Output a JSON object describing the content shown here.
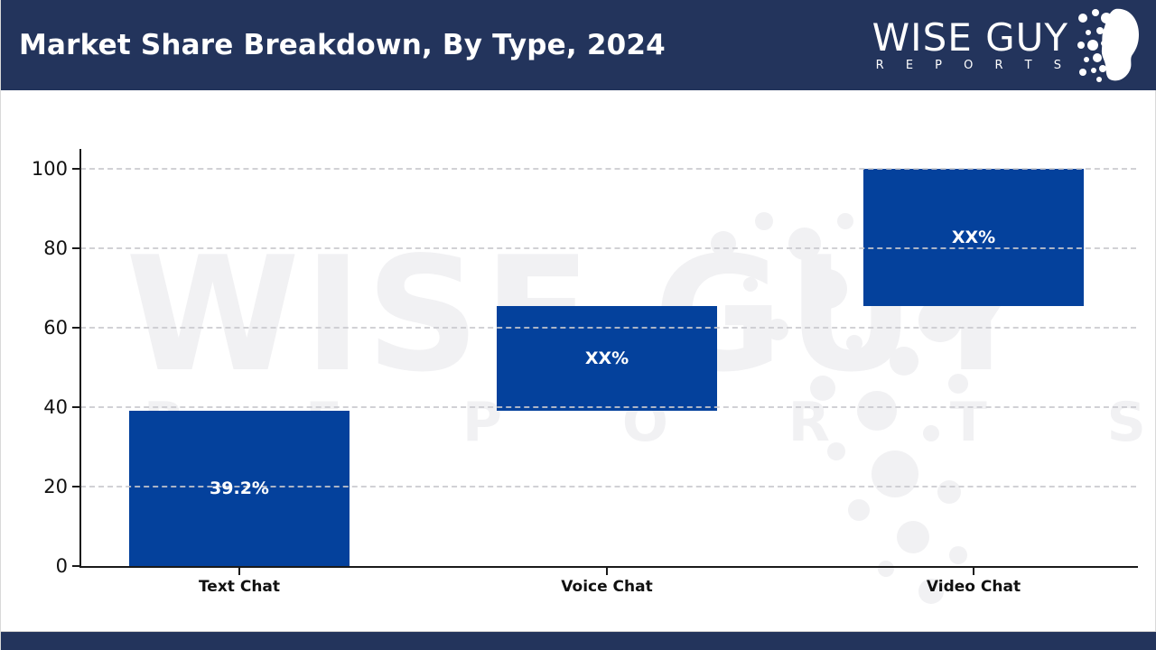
{
  "header": {
    "title": "Market Share Breakdown, By Type, 2024",
    "logo": {
      "line1": "WISE GUY",
      "line2": "R E P O R T S"
    }
  },
  "watermark": {
    "line1": "WISE GUY",
    "line2": "R E P O R T S"
  },
  "colors": {
    "header_bg": "#23345C",
    "footer_bg": "#23345C",
    "bar": "#04419C",
    "bar_label": "#FFFFFF",
    "grid": "#C9C9CE",
    "axis": "#1A1A1A",
    "watermark": "#F1F1F3",
    "background": "#FFFFFF"
  },
  "chart_data": {
    "type": "bar",
    "subtype": "waterfall",
    "title": "Market Share Breakdown, By Type, 2024",
    "categories": [
      "Text Chat",
      "Voice Chat",
      "Video Chat"
    ],
    "bars": [
      {
        "category": "Text Chat",
        "start": 0,
        "end": 39.2,
        "segment_value": 39.2,
        "label": "39.2%"
      },
      {
        "category": "Voice Chat",
        "start": 39.2,
        "end": 65.5,
        "segment_value": 26.3,
        "label": "XX%"
      },
      {
        "category": "Video Chat",
        "start": 65.5,
        "end": 100,
        "segment_value": 34.5,
        "label": "XX%"
      }
    ],
    "yticks": [
      0,
      20,
      40,
      60,
      80,
      100
    ],
    "ylim": [
      0,
      105
    ],
    "xlabel": "",
    "ylabel": "",
    "grid": "horizontal-dashed",
    "legend": "none"
  }
}
